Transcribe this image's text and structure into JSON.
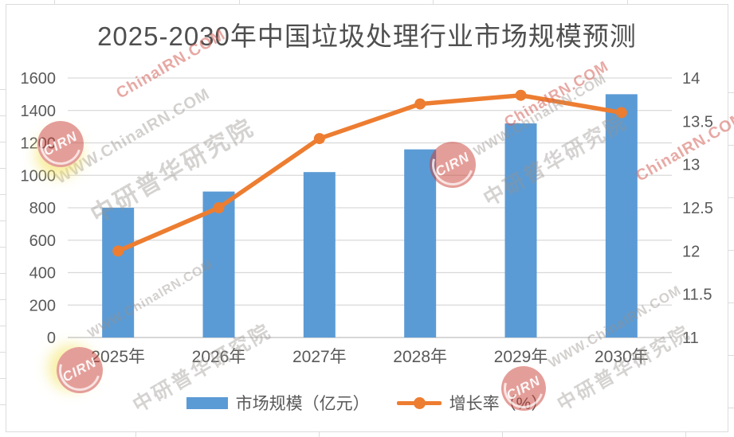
{
  "chart_data": {
    "type": "bar",
    "combo": "bar+line",
    "title": "2025-2030年中国垃圾处理行业市场规模预测",
    "categories": [
      "2025年",
      "2026年",
      "2027年",
      "2028年",
      "2029年",
      "2030年"
    ],
    "series": [
      {
        "name": "市场规模（亿元）",
        "type": "bar",
        "axis": "left",
        "color": "#5B9BD5",
        "values": [
          800,
          900,
          1020,
          1160,
          1320,
          1500
        ]
      },
      {
        "name": "增长率（%）",
        "type": "line",
        "axis": "right",
        "color": "#ED7D31",
        "values": [
          12,
          12.5,
          13.3,
          13.7,
          13.8,
          13.6
        ]
      }
    ],
    "left_axis": {
      "min": 0,
      "max": 1600,
      "step": 200,
      "ticks": [
        "1600",
        "1400",
        "1200",
        "1000",
        "800",
        "600",
        "400",
        "200",
        "0"
      ]
    },
    "right_axis": {
      "min": 11,
      "max": 14,
      "step": 0.5,
      "ticks": [
        "14",
        "13.5",
        "13",
        "12.5",
        "12",
        "11.5",
        "11"
      ]
    },
    "grid": true,
    "legend_position": "bottom",
    "gridline_color": "#d9d9d9",
    "axis_line_color": "#bfbfbf",
    "tick_label_color": "#595959",
    "title_color": "#4f4f4f"
  },
  "watermark": {
    "logo_text": "CIRN",
    "url_text": "WWW.ChinaIRN.COM",
    "red_url_text": "ChinaIRN.COM",
    "brand_text": "中研普华研究院"
  }
}
